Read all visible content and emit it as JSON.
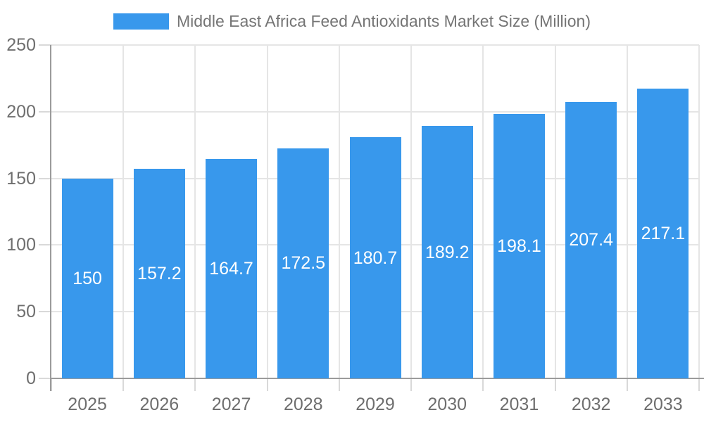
{
  "legend": {
    "label": "Middle East Africa Feed Antioxidants Market Size (Million)"
  },
  "colors": {
    "bar": "#3898EC",
    "axis_line": "#9B9B9B",
    "gridline": "#E5E5E5",
    "tick": "#D9D9D9",
    "tick_text": "#6E6E6E",
    "legend_text": "#757575",
    "bar_label_text": "#FFFFFF",
    "background": "#FFFFFF"
  },
  "chart_data": {
    "type": "bar",
    "title": "Middle East Africa Feed Antioxidants Market Size (Million)",
    "series_name": "Middle East Africa Feed Antioxidants Market Size (Million)",
    "categories": [
      "2025",
      "2026",
      "2027",
      "2028",
      "2029",
      "2030",
      "2031",
      "2032",
      "2033"
    ],
    "values": [
      150,
      157.2,
      164.7,
      172.5,
      180.7,
      189.2,
      198.1,
      207.4,
      217.1
    ],
    "value_labels": [
      "150",
      "157.2",
      "164.7",
      "172.5",
      "180.7",
      "189.2",
      "198.1",
      "207.4",
      "217.1"
    ],
    "xlabel": "",
    "ylabel": "",
    "ylim": [
      0,
      250
    ],
    "y_ticks": [
      0,
      50,
      100,
      150,
      200,
      250
    ],
    "grid": true,
    "legend_position": "top",
    "bar_label_position": "center-inside"
  }
}
